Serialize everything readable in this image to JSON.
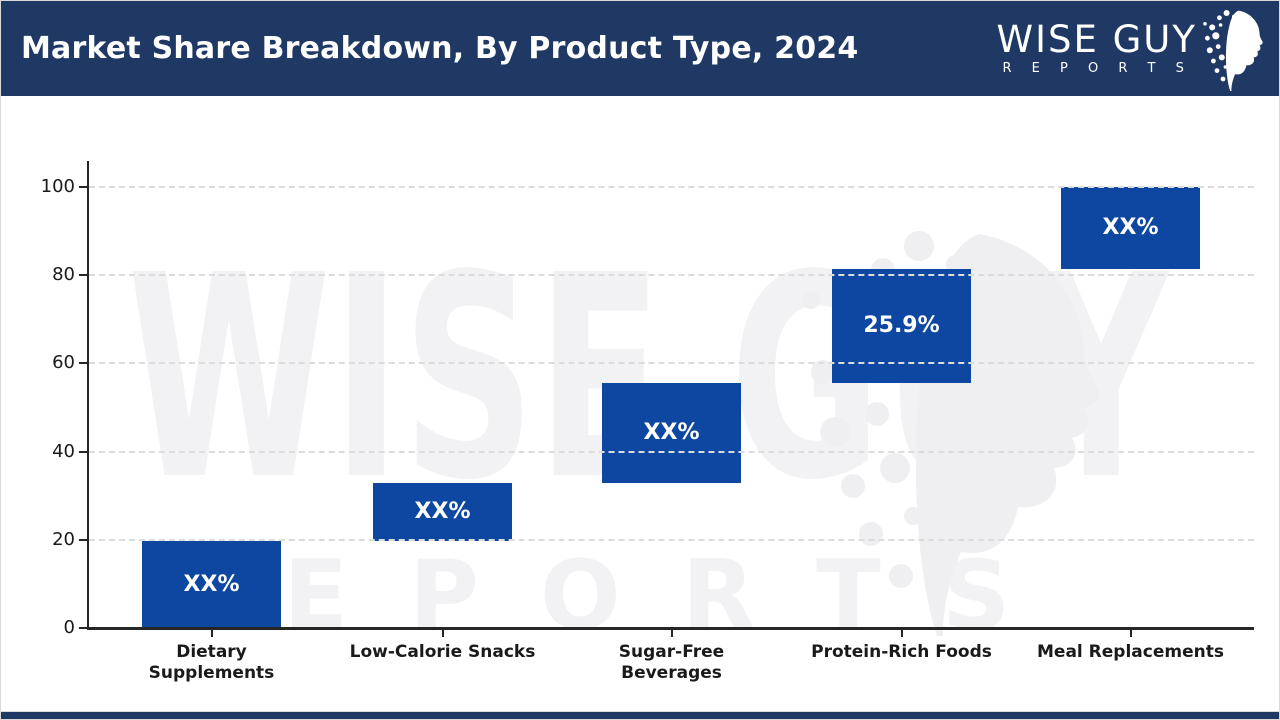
{
  "header": {
    "title": "Market Share Breakdown, By Product Type, 2024",
    "background": "#1f3864",
    "logo": {
      "wordmark": "WISE GUY",
      "subtext": "R E P O R T S",
      "face_icon": "dotted-head-profile",
      "color": "#ffffff"
    }
  },
  "watermark": {
    "wordmark": "WISE GUY",
    "subtext": "R E P O R T S",
    "color": "#f2f2f4"
  },
  "footer": {
    "strip_color": "#1f3864"
  },
  "chart_data": {
    "type": "bar",
    "variant": "floating-range-waterfall",
    "title": "Market Share Breakdown, By Product Type, 2024",
    "xlabel": "",
    "ylabel": "",
    "categories": [
      "Dietary Supplements",
      "Low-Calorie Snacks",
      "Sugar-Free Beverages",
      "Protein-Rich Foods",
      "Meal Replacements"
    ],
    "category_label_lines": [
      [
        "Dietary",
        "Supplements"
      ],
      [
        "Low-Calorie Snacks"
      ],
      [
        "Sugar-Free",
        "Beverages"
      ],
      [
        "Protein-Rich Foods"
      ],
      [
        "Meal Replacements"
      ]
    ],
    "ranges": [
      [
        0,
        19.7
      ],
      [
        19.7,
        32.8
      ],
      [
        32.8,
        55.6
      ],
      [
        55.6,
        81.5
      ],
      [
        81.5,
        100
      ]
    ],
    "segment_heights": [
      19.7,
      13.1,
      22.8,
      25.9,
      18.5
    ],
    "bar_labels": [
      "XX%",
      "XX%",
      "XX%",
      "25.9%",
      "XX%"
    ],
    "bar_color": "#0d47a1",
    "bar_label_color": "#ffffff",
    "yticks": [
      0,
      20,
      40,
      60,
      80,
      100
    ],
    "ylim": [
      0,
      100
    ],
    "grid": {
      "horizontal": true,
      "style": "dashed",
      "color": "#dcdcdc",
      "above_bars": true
    },
    "axis_color": "#262626",
    "tick_label_color": "#1a1a1a",
    "legend": "none"
  }
}
